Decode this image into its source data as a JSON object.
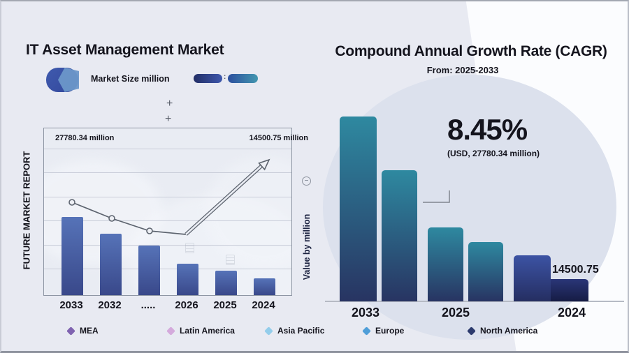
{
  "header": {
    "left_title": "IT Asset Management Market",
    "right_title": "Compound Annual Growth Rate (CAGR)",
    "right_subtitle": "From: 2025-2033"
  },
  "left_legend": {
    "label": "Market Size million",
    "separator": ":"
  },
  "left_chart": {
    "top_left_value": "27780.34 million",
    "top_right_value": "14500.75 million",
    "left_axis_label": "FUTURE MARKET REPORT",
    "right_axis_label": "Value by million",
    "plus_top": "+",
    "plus_bottom": "+",
    "minus": "–"
  },
  "cagr": {
    "value": "8.45%",
    "note": "(USD, 27780.34 million)"
  },
  "right_chart": {
    "data_label": "14500.75"
  },
  "legend": {
    "items": [
      {
        "label": "MEA",
        "color": "#7f63b0"
      },
      {
        "label": "Latin America",
        "color": "#d4aadc"
      },
      {
        "label": "Asia Pacific",
        "color": "#93cdeb"
      },
      {
        "label": "Europe",
        "color": "#4f9ed8"
      },
      {
        "label": "North America",
        "color": "#2c3a6d"
      }
    ]
  },
  "chart_data": [
    {
      "type": "bar",
      "title": "IT Asset Management Market",
      "series_name": "Market Size million",
      "ylabel_left": "FUTURE MARKET REPORT",
      "ylabel_right": "Value by million",
      "categories": [
        "2033",
        "2032",
        ".....",
        "2026",
        "2025",
        "2024"
      ],
      "values_million": [
        27780.34,
        null,
        null,
        null,
        null,
        14500.75
      ],
      "bar_heights_rel": [
        1,
        0.79,
        0.63,
        0.4,
        0.31,
        0.21
      ],
      "annotations": [
        "27780.34 million",
        "14500.75 million"
      ],
      "trend_line": "markers decline from 2033 to 2026 then outlined arrow rises sharply to upper right",
      "grid": true,
      "legend_position": "top"
    },
    {
      "type": "bar",
      "title": "Compound Annual Growth Rate (CAGR)",
      "subtitle": "From: 2025-2033",
      "cagr_percent": 8.45,
      "cagr_base": "(USD, 27780.34 million)",
      "categories": [
        "2033",
        "2025",
        "2024"
      ],
      "series": [
        {
          "name": "bar-a",
          "heights_rel": [
            1,
            0.4,
            0.25
          ]
        },
        {
          "name": "bar-b",
          "heights_rel": [
            0.71,
            0.32,
            0.12
          ]
        }
      ],
      "data_label": "14500.75",
      "data_label_value": 14500.75,
      "grid": false
    }
  ],
  "colors": {
    "left_bar_top": "#5673b8",
    "left_bar_bottom": "#39488a",
    "right_bar_top": "#2e89a0",
    "right_bar_bottom": "#283462",
    "right_bar_2024a_top": "#3c53a4",
    "right_bar_2024a_bottom": "#252e61",
    "right_bar_2024b_top": "#2a3678",
    "right_bar_2024b_bottom": "#161c44",
    "pill_dark": "#23306b",
    "pill_blue": "#3e58ad",
    "pill_teal": "#4397b0",
    "background_left": "#e8eaf2",
    "background_blob": "#dce1ed",
    "background_white": "#fbfcfe",
    "text_dark": "#14141d"
  }
}
